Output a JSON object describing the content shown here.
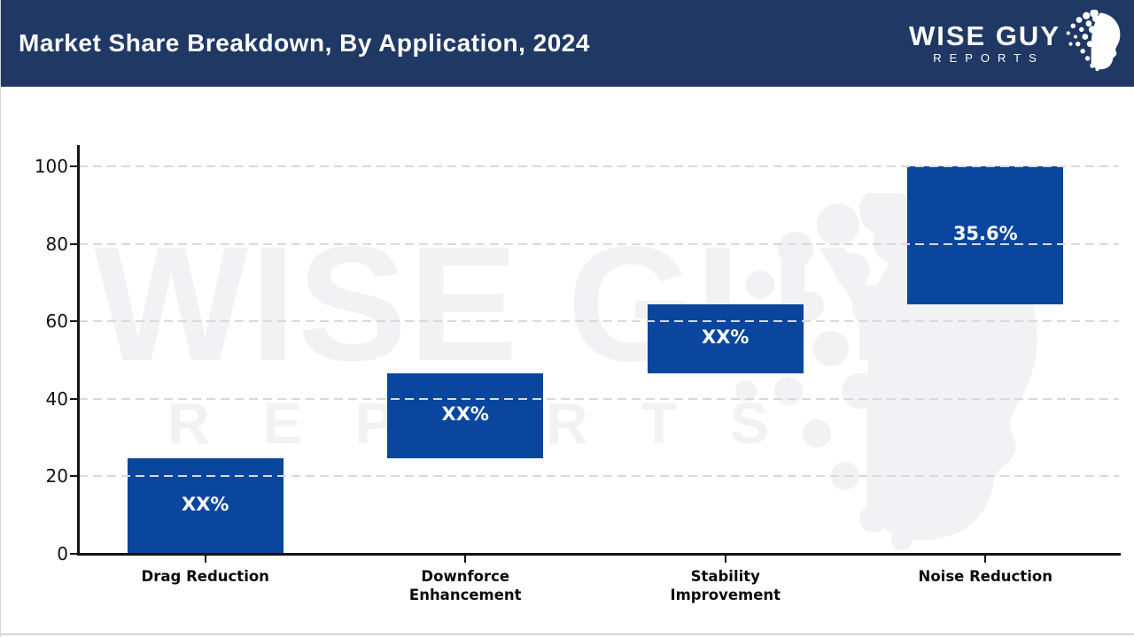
{
  "header": {
    "title": "Market Share Breakdown, By Application, 2024",
    "logo": {
      "line1": "WISE GUY",
      "line2": "REPORTS"
    }
  },
  "chart_data": {
    "type": "bar",
    "subtype": "waterfall",
    "title": "Market Share Breakdown, By Application, 2024",
    "categories": [
      "Drag Reduction",
      "Downforce Enhancement",
      "Stability Improvement",
      "Noise Reduction"
    ],
    "segments": [
      {
        "category": "Drag Reduction",
        "start": 0,
        "end": 24.7,
        "label": "XX%"
      },
      {
        "category": "Downforce Enhancement",
        "start": 24.7,
        "end": 46.6,
        "label": "XX%"
      },
      {
        "category": "Stability Improvement",
        "start": 46.6,
        "end": 64.4,
        "label": "XX%"
      },
      {
        "category": "Noise Reduction",
        "start": 64.4,
        "end": 100,
        "label": "35.6%"
      }
    ],
    "values": [
      24.7,
      21.9,
      17.8,
      35.6
    ],
    "unit": "%",
    "xlabel": "",
    "ylabel": "",
    "ylim": [
      0,
      100
    ],
    "yticks": [
      0,
      20,
      40,
      60,
      80,
      100
    ],
    "grid": "horizontal-dashed",
    "legend": "none",
    "colors": {
      "bar": "#0a469e",
      "grid": "#d9d9d9",
      "axis": "#141414",
      "header_bg": "#1f3864",
      "title_text": "#ffffff",
      "bar_label": "#ffffff",
      "watermark": "#f2f2f4"
    },
    "watermark": {
      "line1": "WISE GUY",
      "line2": "REPORTS"
    }
  }
}
